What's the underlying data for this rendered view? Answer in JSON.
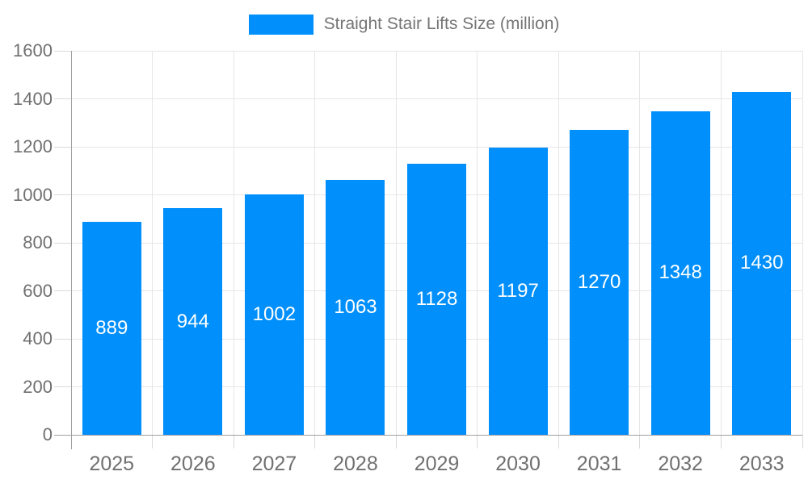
{
  "chart_data": {
    "type": "bar",
    "title": "",
    "legend": "Straight Stair Lifts Size (million)",
    "legend_position": "top-center",
    "categories": [
      "2025",
      "2026",
      "2027",
      "2028",
      "2029",
      "2030",
      "2031",
      "2032",
      "2033"
    ],
    "series": [
      {
        "name": "Straight Stair Lifts Size (million)",
        "values": [
          889,
          944,
          1002,
          1063,
          1128,
          1197,
          1270,
          1348,
          1430
        ]
      }
    ],
    "bar_value_labels": [
      "889",
      "944",
      "1002",
      "1063",
      "1128",
      "1197",
      "1270",
      "1348",
      "1430"
    ],
    "xlabel": "",
    "ylabel": "",
    "ylim": [
      0,
      1600
    ],
    "yticks": [
      0,
      200,
      400,
      600,
      800,
      1000,
      1200,
      1400,
      1600
    ],
    "grid": true,
    "colors": {
      "bar": "#008FFB",
      "bar_label_text": "#ffffff",
      "axis_text": "#707070",
      "legend_text": "#757575",
      "gridline": "#e6e6e6",
      "tick": "#dadada",
      "axis_line": "#a0a0a0"
    }
  }
}
